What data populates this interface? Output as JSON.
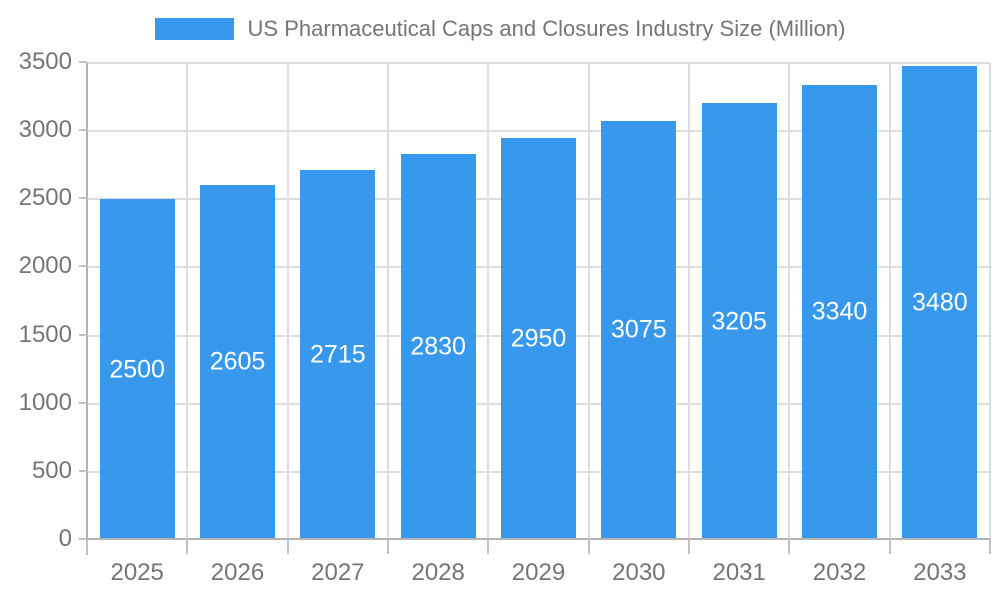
{
  "chart_data": {
    "type": "bar",
    "title": "US Pharmaceutical Caps and Closures Industry Size (Million)",
    "legend": [
      "US Pharmaceutical Caps and Closures Industry Size (Million)"
    ],
    "legend_position": "top-center",
    "categories": [
      "2025",
      "2026",
      "2027",
      "2028",
      "2029",
      "2030",
      "2031",
      "2032",
      "2033"
    ],
    "series": [
      {
        "name": "US Pharmaceutical Caps and Closures Industry Size (Million)",
        "values": [
          2500,
          2605,
          2715,
          2830,
          2950,
          3075,
          3205,
          3340,
          3480
        ]
      }
    ],
    "bar_value_labels": [
      "2500",
      "2605",
      "2715",
      "2830",
      "2950",
      "3075",
      "3205",
      "3340",
      "3480"
    ],
    "xlabel": "",
    "ylabel": "",
    "ylim": [
      0,
      3500
    ],
    "yticks": [
      0,
      500,
      1000,
      1500,
      2000,
      2500,
      3000,
      3500
    ],
    "grid": true,
    "colors": {
      "bar": "#3899EC",
      "grid": "#DDDDDD",
      "axis": "#B3B3B3",
      "tick": "#C2C2C2",
      "text": "#757575",
      "bar_label": "#FFFFFF",
      "background": "#FFFFFF"
    }
  }
}
